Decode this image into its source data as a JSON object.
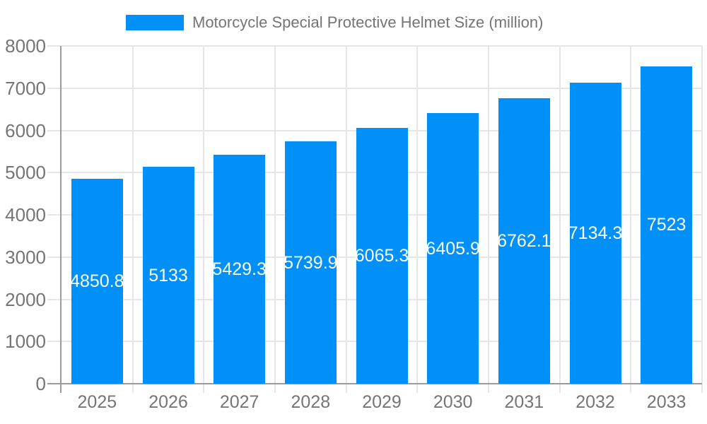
{
  "legend": {
    "label": "Motorcycle Special Protective Helmet Size (million)"
  },
  "colors": {
    "bar": "#0190f7",
    "grid": "#e6e6e6",
    "axis": "#9a9a9a",
    "text": "#757575",
    "value_label": "#ffffff",
    "background": "#ffffff"
  },
  "chart_data": {
    "type": "bar",
    "title": "Motorcycle Special Protective Helmet Size (million)",
    "categories": [
      "2025",
      "2026",
      "2027",
      "2028",
      "2029",
      "2030",
      "2031",
      "2032",
      "2033"
    ],
    "series": [
      {
        "name": "Motorcycle Special Protective Helmet Size (million)",
        "values": [
          4850.8,
          5133,
          5429.3,
          5739.9,
          6065.3,
          6405.9,
          6762.1,
          7134.3,
          7523
        ]
      }
    ],
    "value_label_texts": [
      "4850.8",
      "5133",
      "5429.3",
      "5739.9",
      "6065.3",
      "6405.9",
      "6762.1",
      "7134.3",
      "7523"
    ],
    "xlabel": "",
    "ylabel": "",
    "ylim": [
      0,
      8000
    ],
    "ytick_step": 1000,
    "ytick_labels": [
      "0",
      "1000",
      "2000",
      "3000",
      "4000",
      "5000",
      "6000",
      "7000",
      "8000"
    ],
    "grid": true,
    "legend_position": "top",
    "value_labels_position": "inside-center"
  }
}
